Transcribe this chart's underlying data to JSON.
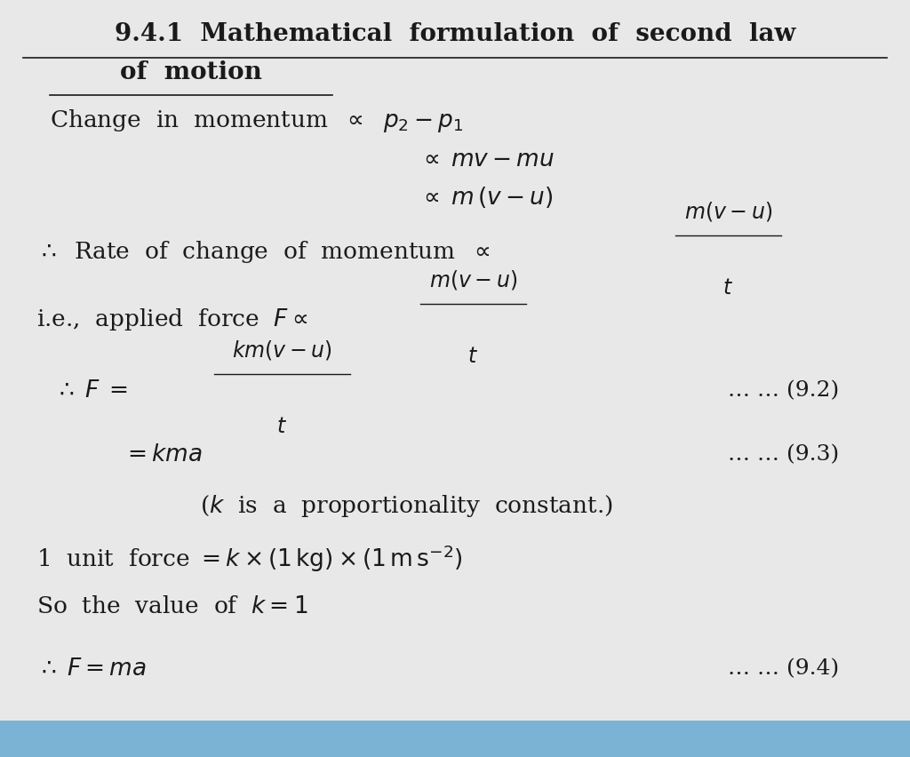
{
  "background_color": "#e8e8e8",
  "text_color": "#1a1a1a",
  "font_size": 19,
  "bottom_bar_color": "#7ab3d4"
}
